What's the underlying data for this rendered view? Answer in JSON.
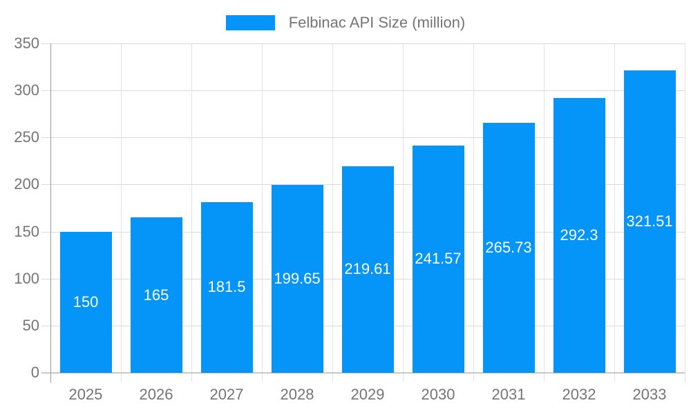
{
  "chart_data": {
    "type": "bar",
    "title": "Felbinac API Size (million)",
    "series": [
      {
        "name": "Felbinac API Size (million)",
        "values": [
          150,
          165,
          181.5,
          199.65,
          219.61,
          241.57,
          265.73,
          292.3,
          321.51
        ],
        "value_labels": [
          "150",
          "165",
          "181.5",
          "199.65",
          "219.61",
          "241.57",
          "265.73",
          "292.3",
          "321.51"
        ]
      }
    ],
    "categories": [
      "2025",
      "2026",
      "2027",
      "2028",
      "2029",
      "2030",
      "2031",
      "2032",
      "2033"
    ],
    "xlabel": "",
    "ylabel": "",
    "ylim": [
      0,
      350
    ],
    "yticks": [
      0,
      50,
      100,
      150,
      200,
      250,
      300,
      350
    ],
    "grid": true,
    "legend_position": "top",
    "colors": {
      "bar": "#0594f7",
      "bar_label": "#ffffff",
      "axis_text": "#757575",
      "axis_line": "#999999",
      "h_grid": "#d9d9d9",
      "v_grid": "#e3e3e3",
      "background": "#ffffff"
    }
  }
}
